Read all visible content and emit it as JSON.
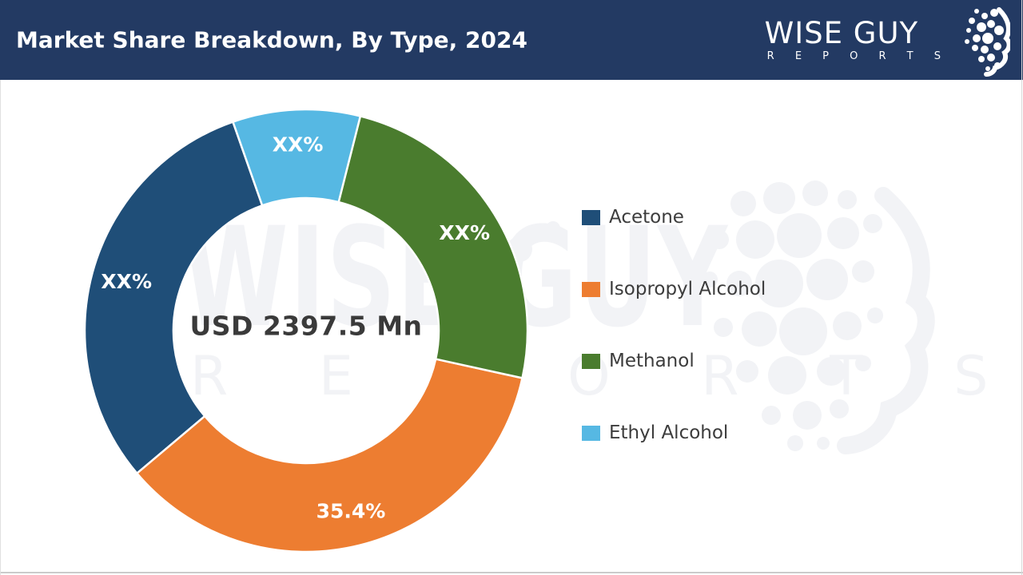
{
  "header": {
    "title": "Market Share Breakdown, By Type, 2024",
    "background_color": "#233A63",
    "logo": {
      "line1": "WISE GUY",
      "line2": "R E P O R T S",
      "icon": "dotted-head-profile-icon"
    }
  },
  "watermark": {
    "line1": "WISE GUY",
    "line2": "R E P O R T S",
    "icon": "dotted-head-profile-watermark"
  },
  "chart_data": {
    "type": "pie",
    "subtype": "donut",
    "title": "Market Share Breakdown, By Type, 2024",
    "center_label": "USD 2397.5 Mn",
    "legend_position": "right",
    "start_angle_deg_clockwise_from_top": -19.3,
    "direction": "counterclockwise",
    "segments": [
      {
        "name": "Acetone",
        "label": "XX%",
        "value_pct": 30.8,
        "color": "#1F4E78",
        "value_hidden": true
      },
      {
        "name": "Isopropyl Alcohol",
        "label": "35.4%",
        "value_pct": 35.4,
        "color": "#ED7D31",
        "value_hidden": false
      },
      {
        "name": "Methanol",
        "label": "XX%",
        "value_pct": 24.5,
        "color": "#4A7C2E",
        "value_hidden": true
      },
      {
        "name": "Ethyl Alcohol",
        "label": "XX%",
        "value_pct": 9.3,
        "color": "#56B8E3",
        "value_hidden": true
      }
    ]
  },
  "colors": {
    "header_bg": "#233A63",
    "center_text": "#3A3A3A",
    "legend_text": "#3C3C3C",
    "watermark": "#F2F3F6",
    "segment_separator": "#FFFFFF",
    "edge_line": "#CBCBCB"
  }
}
